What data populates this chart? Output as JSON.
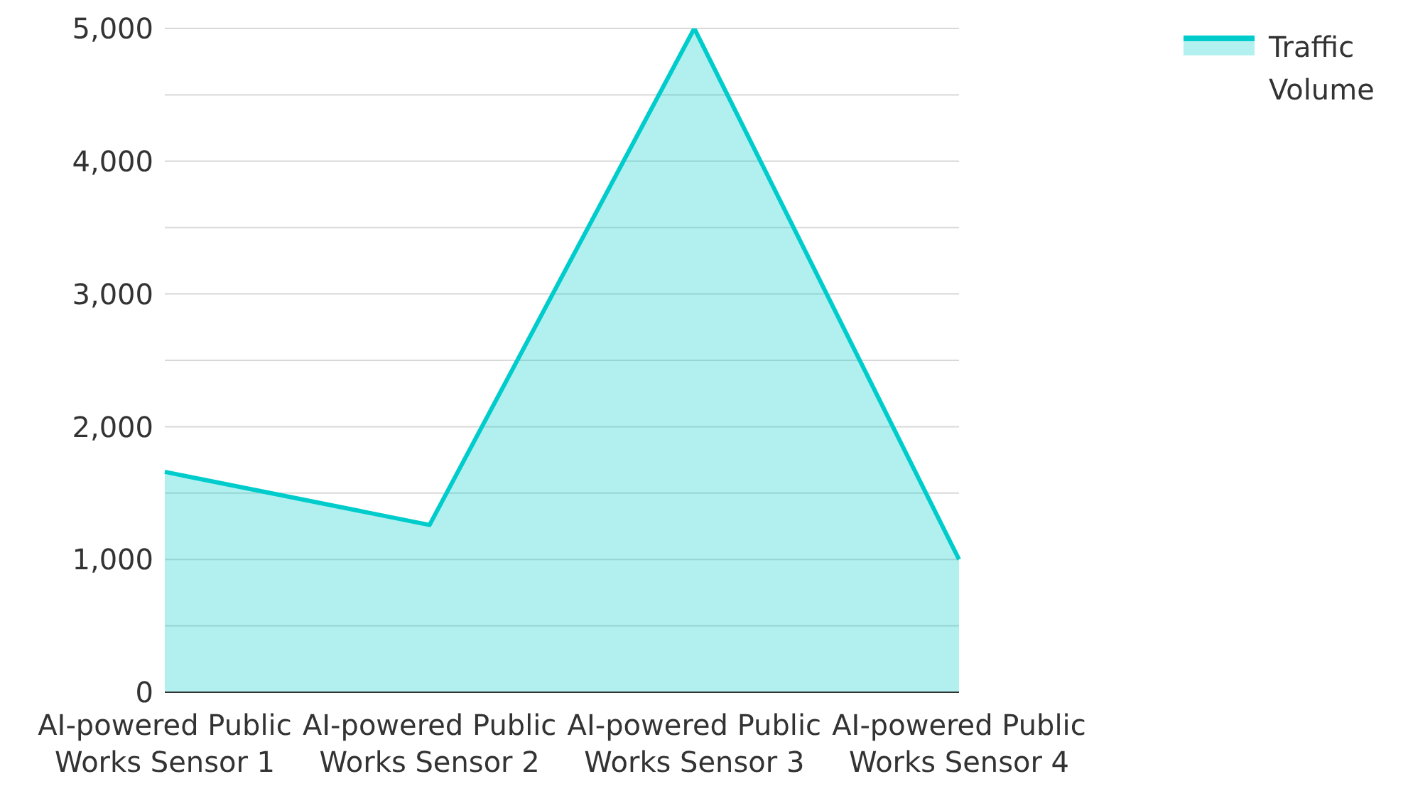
{
  "chart_data": {
    "type": "area",
    "categories": [
      "AI-powered Public Works Sensor 1",
      "AI-powered Public Works Sensor 2",
      "AI-powered Public Works Sensor 3",
      "AI-powered Public Works Sensor 4"
    ],
    "series": [
      {
        "name": "Traffic Volume",
        "color": "#00cccc",
        "values": [
          1660,
          1260,
          5000,
          1000
        ]
      }
    ],
    "ylim": [
      0,
      5000
    ],
    "yticks": [
      0,
      {
        "value": 500,
        "label": null
      },
      {
        "value": 1000,
        "label": "1,000"
      },
      {
        "value": 1500,
        "label": null
      },
      {
        "value": 2000,
        "label": "2,000"
      },
      {
        "value": 2500,
        "label": null
      },
      {
        "value": 3000,
        "label": "3,000"
      },
      {
        "value": 3500,
        "label": null
      },
      {
        "value": 4000,
        "label": "4,000"
      },
      {
        "value": 4500,
        "label": null
      },
      {
        "value": 5000,
        "label": "5,000"
      }
    ],
    "grid": "y",
    "legend": "top right"
  }
}
